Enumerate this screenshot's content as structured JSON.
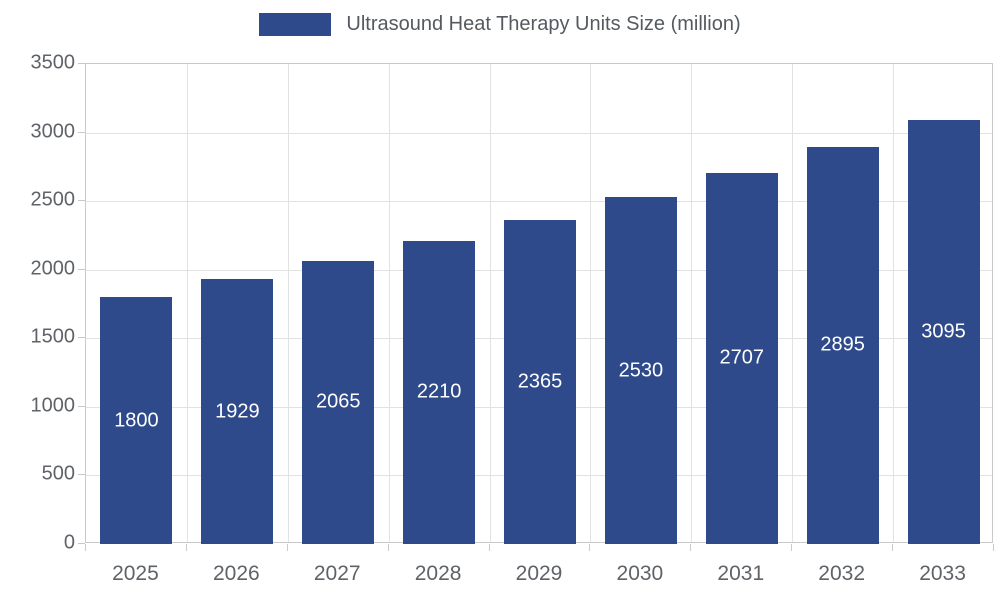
{
  "legend": {
    "label": "Ultrasound Heat Therapy Units Size (million)"
  },
  "chart_data": {
    "type": "bar",
    "title": "Ultrasound Heat Therapy Units Size (million)",
    "categories": [
      "2025",
      "2026",
      "2027",
      "2028",
      "2029",
      "2030",
      "2031",
      "2032",
      "2033"
    ],
    "values": [
      1800,
      1929,
      2065,
      2210,
      2365,
      2530,
      2707,
      2895,
      3095
    ],
    "xlabel": "",
    "ylabel": "",
    "ylim": [
      0,
      3500
    ],
    "yticks": [
      0,
      500,
      1000,
      1500,
      2000,
      2500,
      3000,
      3500
    ],
    "grid": true,
    "legend_position": "top",
    "bar_color": "#2e4a8b",
    "value_label_color": "#ffffff"
  }
}
